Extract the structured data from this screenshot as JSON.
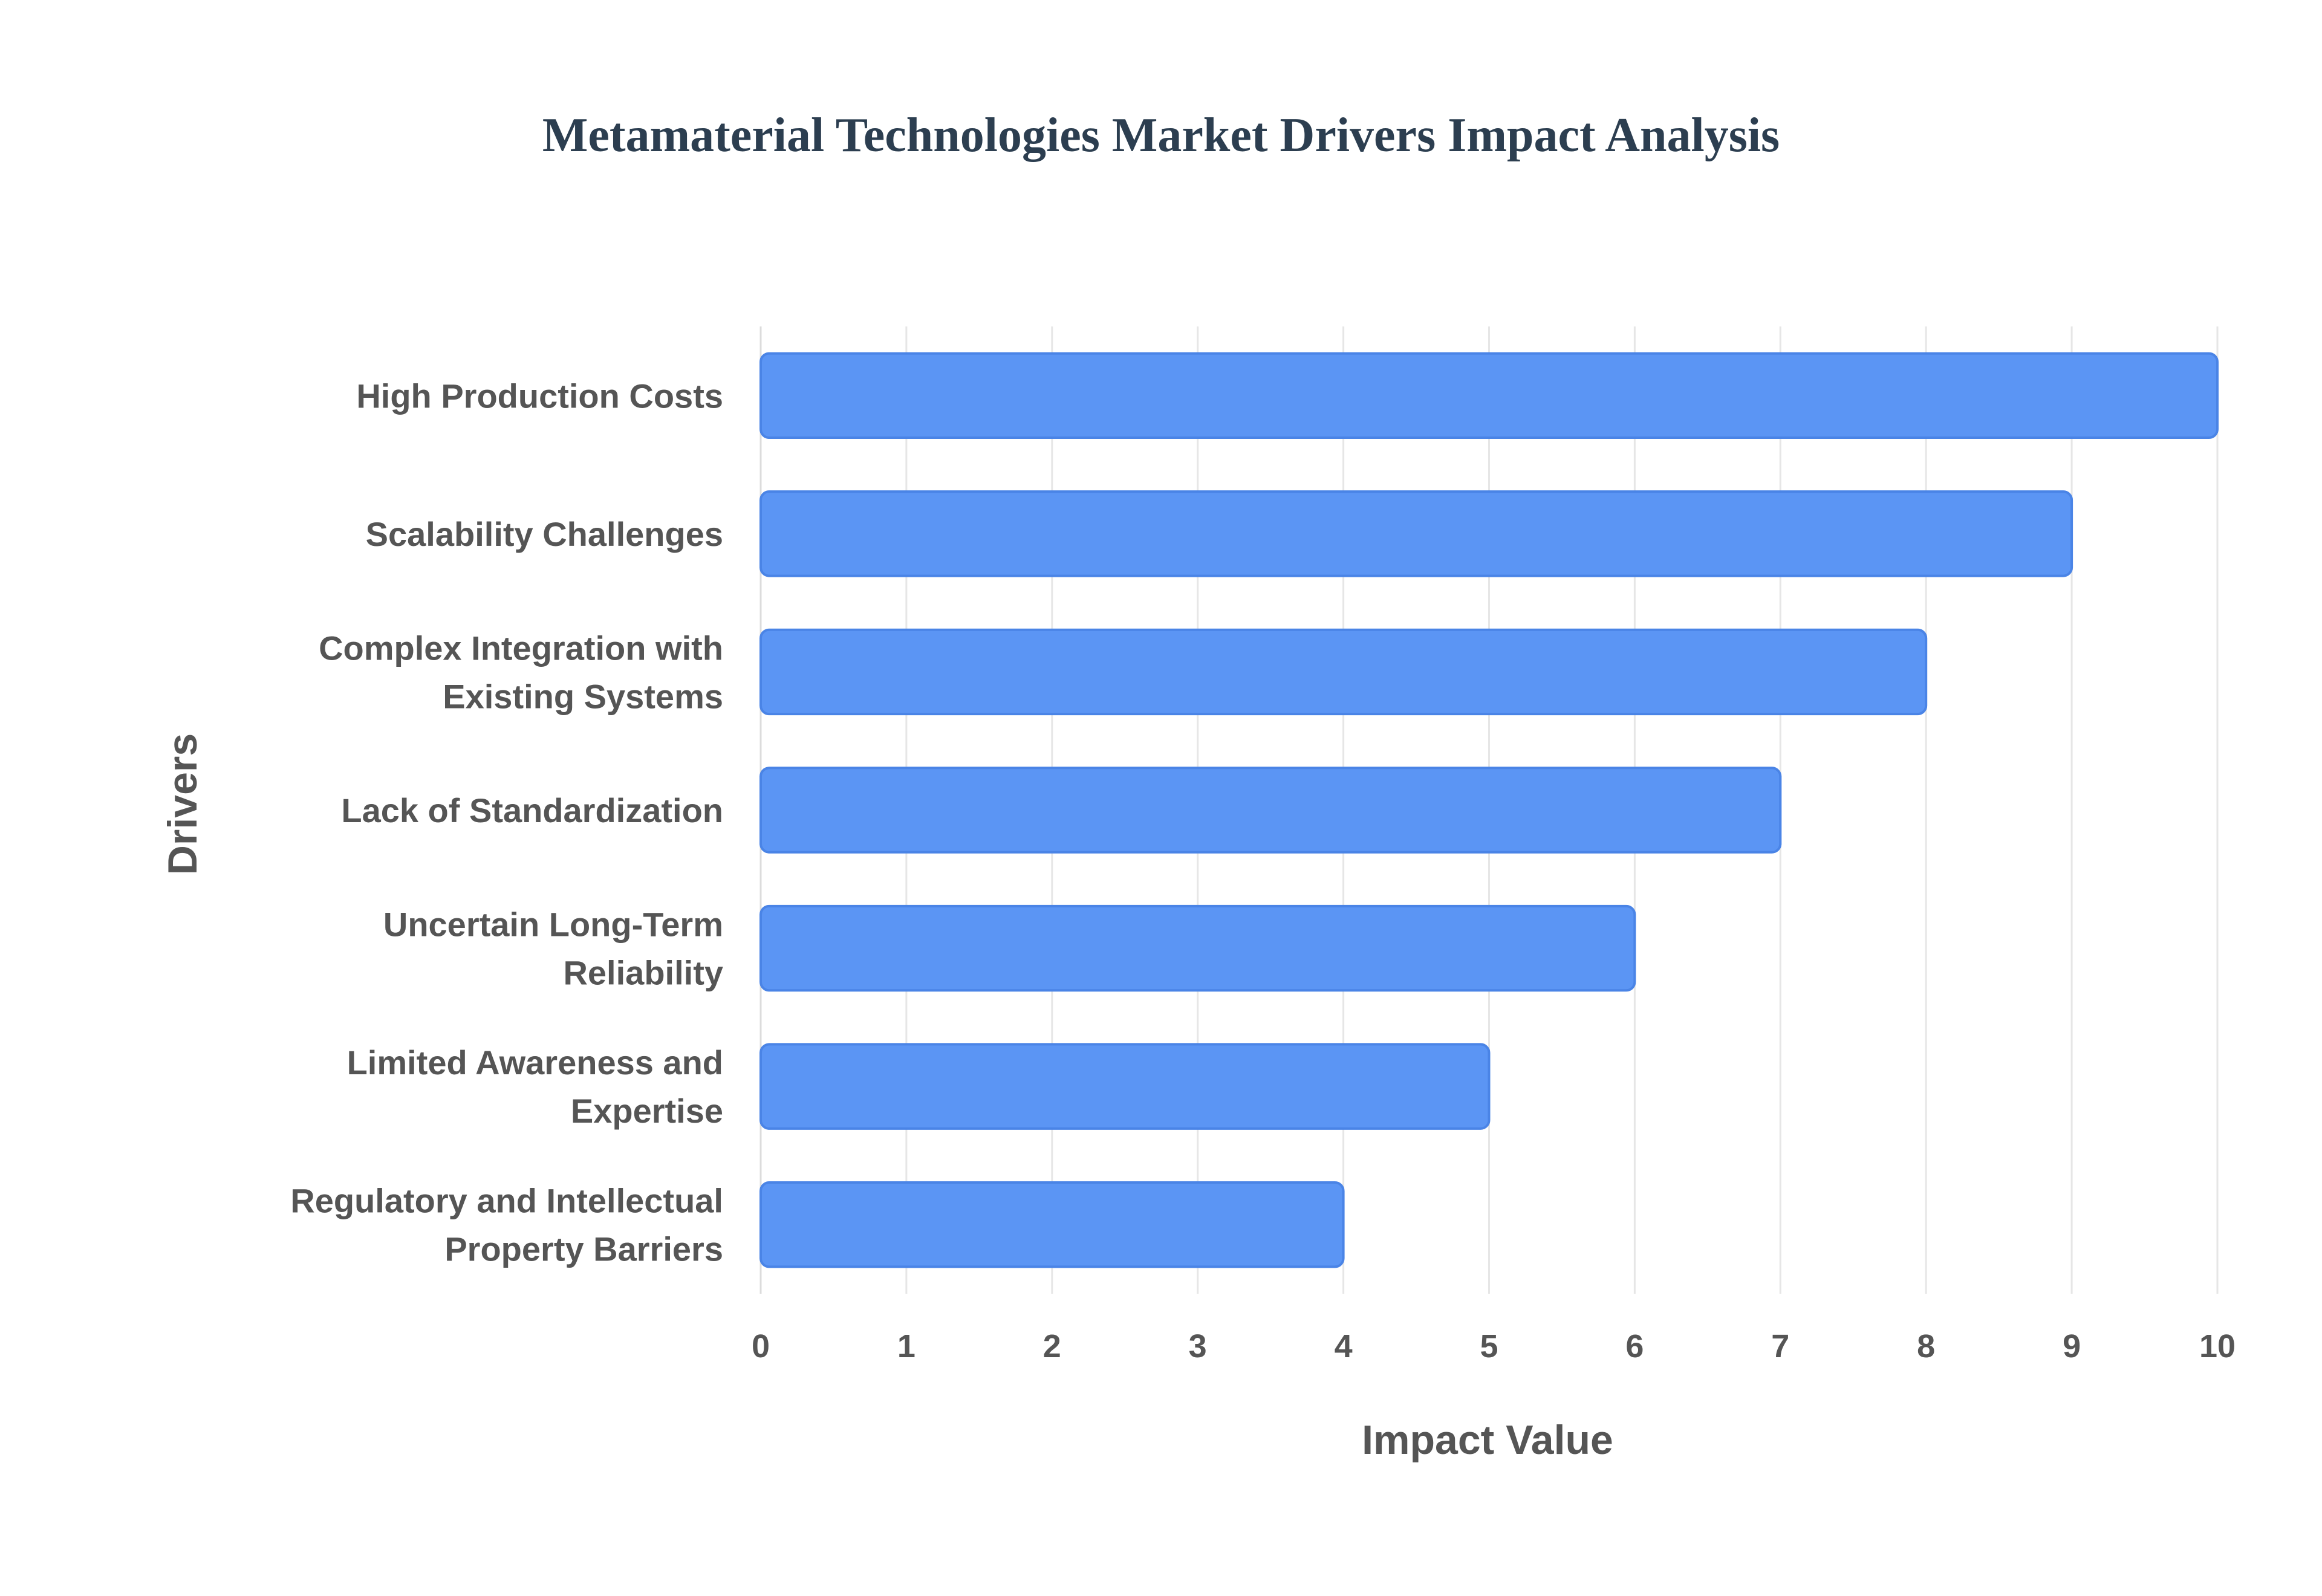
{
  "chart_data": {
    "type": "bar",
    "orientation": "horizontal",
    "title": "Metamaterial Technologies Market Drivers Impact Analysis",
    "xlabel": "Impact Value",
    "ylabel": "Drivers",
    "categories": [
      "High Production Costs",
      "Scalability Challenges",
      "Complex Integration with Existing Systems",
      "Lack of Standardization",
      "Uncertain Long-Term Reliability",
      "Limited Awareness and Expertise",
      "Regulatory and Intellectual Property Barriers"
    ],
    "category_lines": [
      [
        "High Production Costs"
      ],
      [
        "Scalability Challenges"
      ],
      [
        "Complex Integration with",
        "Existing Systems"
      ],
      [
        "Lack of Standardization"
      ],
      [
        "Uncertain Long-Term",
        "Reliability"
      ],
      [
        "Limited Awareness and",
        "Expertise"
      ],
      [
        "Regulatory and Intellectual",
        "Property Barriers"
      ]
    ],
    "values": [
      10,
      9,
      8,
      7,
      6,
      5,
      4
    ],
    "xlim": [
      0,
      10
    ],
    "xticks": [
      "0",
      "1",
      "2",
      "3",
      "4",
      "5",
      "6",
      "7",
      "8",
      "9",
      "10"
    ],
    "grid": true,
    "colors": {
      "bar_fill": "#5b95f4",
      "bar_edge": "#4a84e6",
      "title": "#2c3e50",
      "text": "#555555"
    }
  }
}
